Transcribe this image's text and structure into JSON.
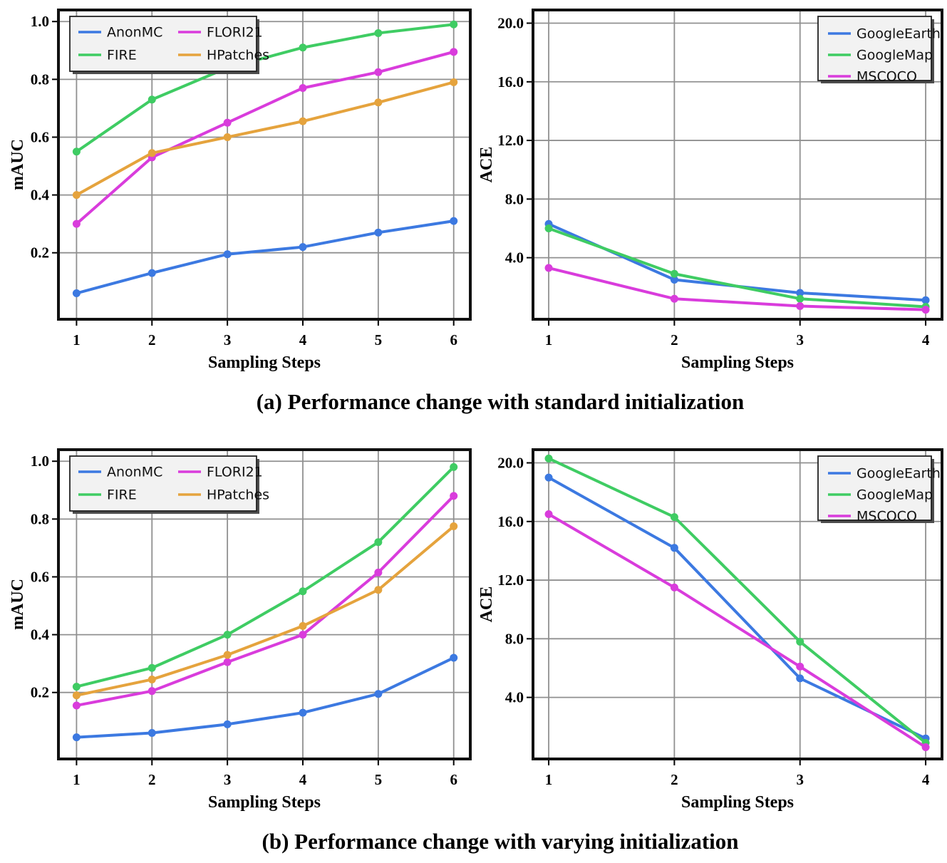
{
  "captions": {
    "a": "(a) Performance change with standard initialization",
    "b": "(b) Performance change with varying initialization"
  },
  "style": {
    "background": "#ffffff",
    "grid_color": "#909090",
    "axis_color": "#111111",
    "tick_color": "#000000",
    "legend_bg": "#f2f2f2",
    "legend_border": "#222222",
    "legend_shadow": "#4d4d4d"
  },
  "chart_data": [
    {
      "id": "mauc-standard",
      "type": "line",
      "title": "",
      "xlabel": "Sampling Steps",
      "ylabel": "mAUC",
      "x": [
        1,
        2,
        3,
        4,
        5,
        6
      ],
      "xlim": [
        0.76,
        6.22
      ],
      "ylim": [
        -0.03,
        1.04
      ],
      "xticks": [
        1,
        2,
        3,
        4,
        5,
        6
      ],
      "xtick_labels": [
        "1",
        "2",
        "3",
        "4",
        "5",
        "6"
      ],
      "yticks": [
        0.2,
        0.4,
        0.6,
        0.8,
        1.0
      ],
      "ytick_labels": [
        "0.2",
        "0.4",
        "0.6",
        "0.8",
        "1.0"
      ],
      "grid": true,
      "legend": {
        "position": "upper-left",
        "columns": 2
      },
      "series": [
        {
          "name": "AnonMC",
          "color": "#3C79E1",
          "values": [
            0.06,
            0.13,
            0.195,
            0.22,
            0.27,
            0.31
          ]
        },
        {
          "name": "FIRE",
          "color": "#3FCC63",
          "values": [
            0.55,
            0.73,
            0.84,
            0.91,
            0.96,
            0.99
          ]
        },
        {
          "name": "FLORI21",
          "color": "#D93CDC",
          "values": [
            0.3,
            0.53,
            0.65,
            0.77,
            0.825,
            0.895
          ]
        },
        {
          "name": "HPatches",
          "color": "#E5A33D",
          "values": [
            0.4,
            0.545,
            0.6,
            0.655,
            0.72,
            0.79
          ]
        }
      ]
    },
    {
      "id": "ace-standard",
      "type": "line",
      "title": "",
      "xlabel": "Sampling Steps",
      "ylabel": "ACE",
      "x": [
        1,
        2,
        3,
        4
      ],
      "xlim": [
        0.875,
        4.13
      ],
      "ylim": [
        -0.2,
        20.9
      ],
      "xticks": [
        1,
        2,
        3,
        4
      ],
      "xtick_labels": [
        "1",
        "2",
        "3",
        "4"
      ],
      "yticks": [
        4,
        8,
        12,
        16,
        20
      ],
      "ytick_labels": [
        "4.0",
        "8.0",
        "12.0",
        "16.0",
        "20.0"
      ],
      "grid": true,
      "legend": {
        "position": "upper-right",
        "columns": 1
      },
      "series": [
        {
          "name": "GoogleEarth",
          "color": "#3C79E1",
          "values": [
            6.3,
            2.5,
            1.6,
            1.1
          ]
        },
        {
          "name": "GoogleMap",
          "color": "#3FCC63",
          "values": [
            6.0,
            2.9,
            1.2,
            0.65
          ]
        },
        {
          "name": "MSCOCO",
          "color": "#D93CDC",
          "values": [
            3.3,
            1.2,
            0.7,
            0.45
          ]
        }
      ]
    },
    {
      "id": "mauc-varying",
      "type": "line",
      "title": "",
      "xlabel": "Sampling Steps",
      "ylabel": "mAUC",
      "x": [
        1,
        2,
        3,
        4,
        5,
        6
      ],
      "xlim": [
        0.76,
        6.22
      ],
      "ylim": [
        -0.03,
        1.04
      ],
      "xticks": [
        1,
        2,
        3,
        4,
        5,
        6
      ],
      "xtick_labels": [
        "1",
        "2",
        "3",
        "4",
        "5",
        "6"
      ],
      "yticks": [
        0.2,
        0.4,
        0.6,
        0.8,
        1.0
      ],
      "ytick_labels": [
        "0.2",
        "0.4",
        "0.6",
        "0.8",
        "1.0"
      ],
      "grid": true,
      "legend": {
        "position": "upper-left",
        "columns": 2
      },
      "series": [
        {
          "name": "AnonMC",
          "color": "#3C79E1",
          "values": [
            0.045,
            0.06,
            0.09,
            0.13,
            0.195,
            0.32
          ]
        },
        {
          "name": "FIRE",
          "color": "#3FCC63",
          "values": [
            0.22,
            0.285,
            0.4,
            0.55,
            0.72,
            0.98
          ]
        },
        {
          "name": "FLORI21",
          "color": "#D93CDC",
          "values": [
            0.155,
            0.205,
            0.305,
            0.4,
            0.615,
            0.88
          ]
        },
        {
          "name": "HPatches",
          "color": "#E5A33D",
          "values": [
            0.19,
            0.245,
            0.33,
            0.43,
            0.555,
            0.775
          ]
        }
      ]
    },
    {
      "id": "ace-varying",
      "type": "line",
      "title": "",
      "xlabel": "Sampling Steps",
      "ylabel": "ACE",
      "x": [
        1,
        2,
        3,
        4
      ],
      "xlim": [
        0.875,
        4.13
      ],
      "ylim": [
        -0.2,
        20.9
      ],
      "xticks": [
        1,
        2,
        3,
        4
      ],
      "xtick_labels": [
        "1",
        "2",
        "3",
        "4"
      ],
      "yticks": [
        4,
        8,
        12,
        16,
        20
      ],
      "ytick_labels": [
        "4.0",
        "8.0",
        "12.0",
        "16.0",
        "20.0"
      ],
      "grid": true,
      "legend": {
        "position": "upper-right",
        "columns": 1
      },
      "series": [
        {
          "name": "GoogleEarth",
          "color": "#3C79E1",
          "values": [
            19.0,
            14.2,
            5.3,
            1.2
          ]
        },
        {
          "name": "GoogleMap",
          "color": "#3FCC63",
          "values": [
            20.3,
            16.3,
            7.8,
            0.9
          ]
        },
        {
          "name": "MSCOCO",
          "color": "#D93CDC",
          "values": [
            16.5,
            11.5,
            6.1,
            0.6
          ]
        }
      ]
    }
  ]
}
